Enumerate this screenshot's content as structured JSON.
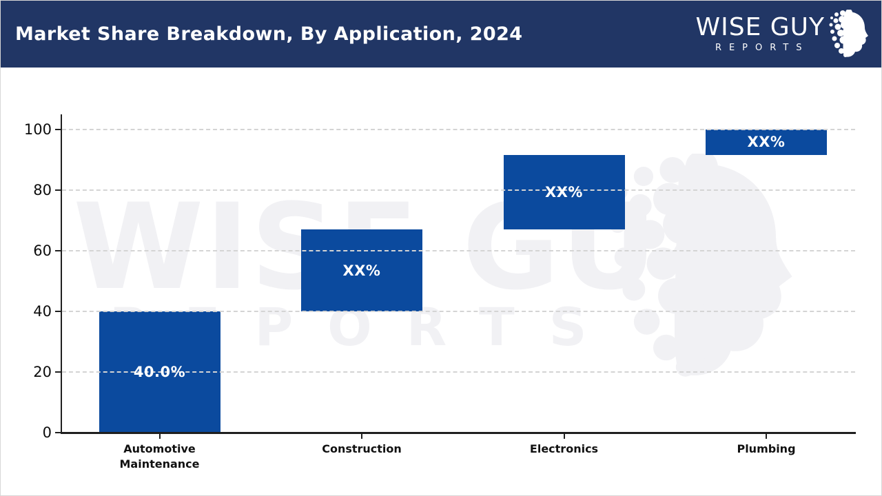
{
  "header": {
    "title": "Market Share Breakdown, By Application, 2024",
    "logo": {
      "line1": "WISE GUY",
      "line2": "REPORTS"
    }
  },
  "watermark": {
    "line1": "WISE GUY",
    "line2": "REPORTS"
  },
  "colors": {
    "header_bg": "#213665",
    "bar": "#0b4a9e",
    "grid": "#d4d4d4",
    "axis": "#1f1f1f",
    "bar_label": "#ffffff",
    "watermark": "#f1f1f4"
  },
  "chart_data": {
    "type": "bar",
    "subtype": "waterfall",
    "title": "Market Share Breakdown, By Application, 2024",
    "xlabel": "",
    "ylabel": "",
    "categories": [
      "Automotive Maintenance",
      "Construction",
      "Electronics",
      "Plumbing"
    ],
    "segments": [
      {
        "category": "Automotive Maintenance",
        "start": 0,
        "end": 40,
        "value": 40.0,
        "label": "40.0%"
      },
      {
        "category": "Construction",
        "start": 40,
        "end": 67,
        "value": 27.0,
        "label": "XX%"
      },
      {
        "category": "Electronics",
        "start": 67,
        "end": 91.7,
        "value": 24.7,
        "label": "XX%"
      },
      {
        "category": "Plumbing",
        "start": 91.7,
        "end": 100,
        "value": 8.3,
        "label": "XX%"
      }
    ],
    "ylim": [
      0,
      100
    ],
    "yticks": [
      0,
      20,
      40,
      60,
      80,
      100
    ],
    "grid": "horizontal-dashed-over-bars",
    "legend": "none"
  }
}
